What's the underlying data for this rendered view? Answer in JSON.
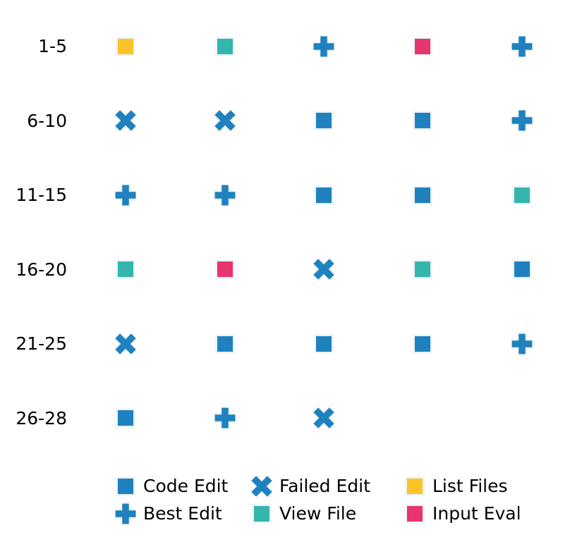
{
  "figure": {
    "background": "#ffffff",
    "text_color": "#000000"
  },
  "chart_data": {
    "type": "scatter",
    "grid": "off",
    "axes": "hidden",
    "columns_per_row": 5,
    "rows": [
      {
        "label": "1-5",
        "markers": [
          "List Files",
          "View File",
          "Best Edit",
          "Input Eval",
          "Best Edit"
        ]
      },
      {
        "label": "6-10",
        "markers": [
          "Failed Edit",
          "Failed Edit",
          "Code Edit",
          "Code Edit",
          "Best Edit"
        ]
      },
      {
        "label": "11-15",
        "markers": [
          "Best Edit",
          "Best Edit",
          "Code Edit",
          "Code Edit",
          "View File"
        ]
      },
      {
        "label": "16-20",
        "markers": [
          "View File",
          "Input Eval",
          "Failed Edit",
          "View File",
          "Code Edit"
        ]
      },
      {
        "label": "21-25",
        "markers": [
          "Failed Edit",
          "Code Edit",
          "Code Edit",
          "Code Edit",
          "Best Edit"
        ]
      },
      {
        "label": "26-28",
        "markers": [
          "Code Edit",
          "Best Edit",
          "Failed Edit",
          null,
          null
        ]
      }
    ],
    "marker_styles": {
      "Code Edit": {
        "shape": "square",
        "color": "#1f82be"
      },
      "Failed Edit": {
        "shape": "x",
        "color": "#1f82be"
      },
      "List Files": {
        "shape": "square",
        "color": "#fdc328"
      },
      "Best Edit": {
        "shape": "plus",
        "color": "#1f82be"
      },
      "View File": {
        "shape": "square",
        "color": "#35b6ac"
      },
      "Input Eval": {
        "shape": "square",
        "color": "#e7356e"
      }
    },
    "marker_edge_color": "#eaf3fa",
    "legend_position": "bottom",
    "legend_rows": [
      [
        "Code Edit",
        "Failed Edit",
        "List Files"
      ],
      [
        "Best Edit",
        "View File",
        "Input Eval"
      ]
    ]
  }
}
